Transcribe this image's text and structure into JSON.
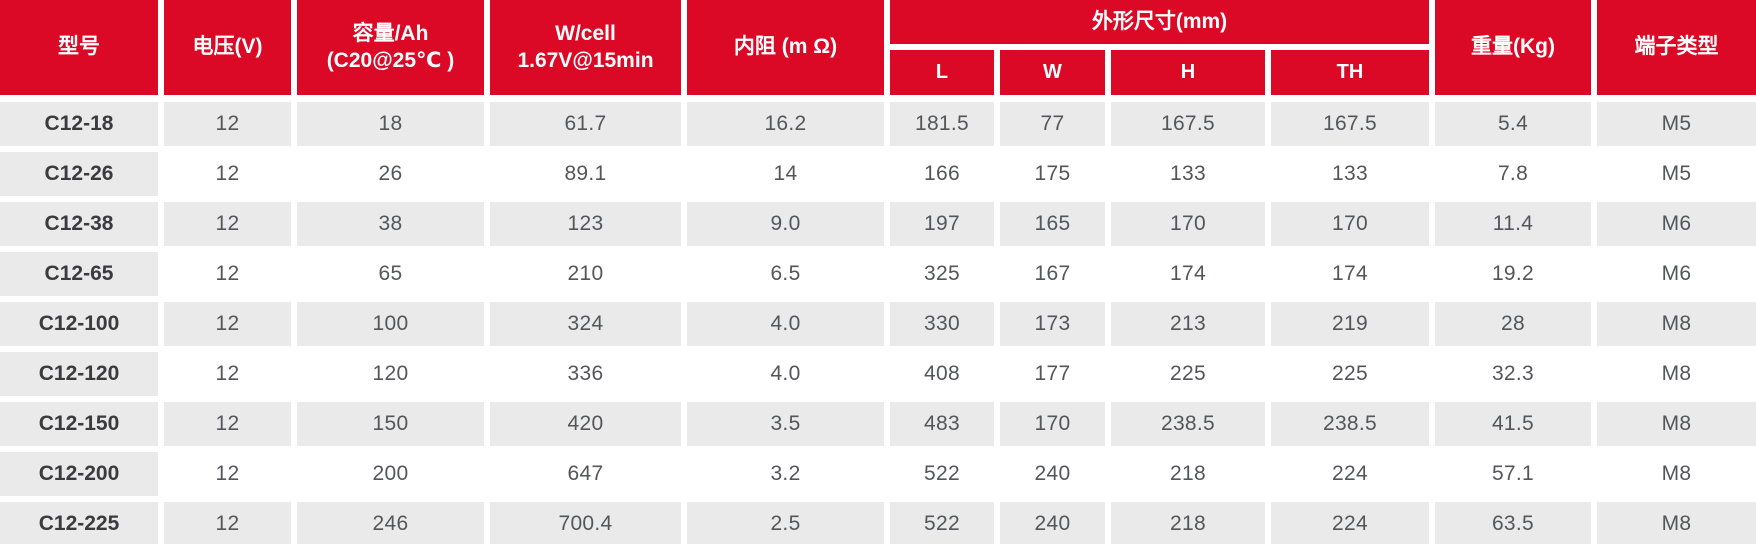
{
  "colors": {
    "header_red": "#DC0926",
    "row_gray": "#E9EAE9"
  },
  "table": {
    "headers": {
      "model": "型号",
      "voltage": "电压(V)",
      "capacity_line1": "容量/Ah",
      "capacity_line2": "(C20@25℃ )",
      "wcell_line1": "W/cell",
      "wcell_line2": "1.67V@15min",
      "resistance": "内阻 (m Ω)",
      "dimensions_group": "外形尺寸(mm)",
      "dim_l": "L",
      "dim_w": "W",
      "dim_h": "H",
      "dim_th": "TH",
      "weight": "重量(Kg)",
      "terminal": "端子类型"
    },
    "rows": [
      {
        "model": "C12-18",
        "voltage": "12",
        "capacity": "18",
        "wcell": "61.7",
        "resistance": "16.2",
        "l": "181.5",
        "w": "77",
        "h": "167.5",
        "th": "167.5",
        "weight": "5.4",
        "terminal": "M5"
      },
      {
        "model": "C12-26",
        "voltage": "12",
        "capacity": "26",
        "wcell": "89.1",
        "resistance": "14",
        "l": "166",
        "w": "175",
        "h": "133",
        "th": "133",
        "weight": "7.8",
        "terminal": "M5"
      },
      {
        "model": "C12-38",
        "voltage": "12",
        "capacity": "38",
        "wcell": "123",
        "resistance": "9.0",
        "l": "197",
        "w": "165",
        "h": "170",
        "th": "170",
        "weight": "11.4",
        "terminal": "M6"
      },
      {
        "model": "C12-65",
        "voltage": "12",
        "capacity": "65",
        "wcell": "210",
        "resistance": "6.5",
        "l": "325",
        "w": "167",
        "h": "174",
        "th": "174",
        "weight": "19.2",
        "terminal": "M6"
      },
      {
        "model": "C12-100",
        "voltage": "12",
        "capacity": "100",
        "wcell": "324",
        "resistance": "4.0",
        "l": "330",
        "w": "173",
        "h": "213",
        "th": "219",
        "weight": "28",
        "terminal": "M8"
      },
      {
        "model": "C12-120",
        "voltage": "12",
        "capacity": "120",
        "wcell": "336",
        "resistance": "4.0",
        "l": "408",
        "w": "177",
        "h": "225",
        "th": "225",
        "weight": "32.3",
        "terminal": "M8"
      },
      {
        "model": "C12-150",
        "voltage": "12",
        "capacity": "150",
        "wcell": "420",
        "resistance": "3.5",
        "l": "483",
        "w": "170",
        "h": "238.5",
        "th": "238.5",
        "weight": "41.5",
        "terminal": "M8"
      },
      {
        "model": "C12-200",
        "voltage": "12",
        "capacity": "200",
        "wcell": "647",
        "resistance": "3.2",
        "l": "522",
        "w": "240",
        "h": "218",
        "th": "224",
        "weight": "57.1",
        "terminal": "M8"
      },
      {
        "model": "C12-225",
        "voltage": "12",
        "capacity": "246",
        "wcell": "700.4",
        "resistance": "2.5",
        "l": "522",
        "w": "240",
        "h": "218",
        "th": "224",
        "weight": "63.5",
        "terminal": "M8"
      }
    ]
  }
}
